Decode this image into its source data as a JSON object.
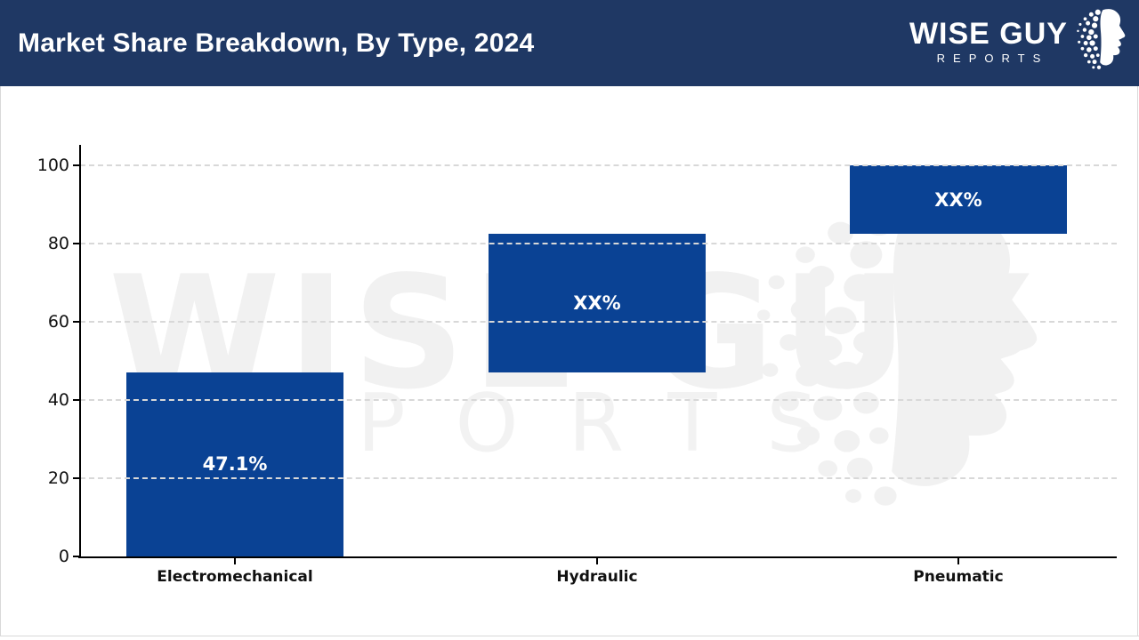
{
  "header": {
    "title": "Market Share Breakdown, By Type, 2024",
    "bg_color": "#1f3864",
    "logo": {
      "wordmark": "WISE GUY",
      "subtext": "REPORTS",
      "face_icon": "dotted-head-profile"
    }
  },
  "watermark": {
    "line1": "WISE GUY",
    "line2": "REPORTS",
    "face_icon": "dotted-head-profile"
  },
  "chart_data": {
    "type": "bar",
    "variant": "waterfall",
    "title": "Market Share Breakdown, By Type, 2024",
    "categories": [
      "Electromechanical",
      "Hydraulic",
      "Pneumatic"
    ],
    "segments": [
      {
        "category": "Electromechanical",
        "base": 0,
        "top": 47.1,
        "label": "47.1%"
      },
      {
        "category": "Hydraulic",
        "base": 47.1,
        "top": 82.4,
        "label": "XX%"
      },
      {
        "category": "Pneumatic",
        "base": 82.4,
        "top": 100,
        "label": "XX%"
      }
    ],
    "ylim": [
      0,
      100
    ],
    "yticks": [
      0,
      20,
      40,
      60,
      80,
      100
    ],
    "grid": {
      "axis": "y",
      "style": "dashed",
      "color": "#d8d8d8"
    },
    "bar_color": "#0a4294",
    "bar_label_color": "#ffffff",
    "axis_color": "#000000",
    "legend": "none",
    "xlabel": "",
    "ylabel": ""
  }
}
